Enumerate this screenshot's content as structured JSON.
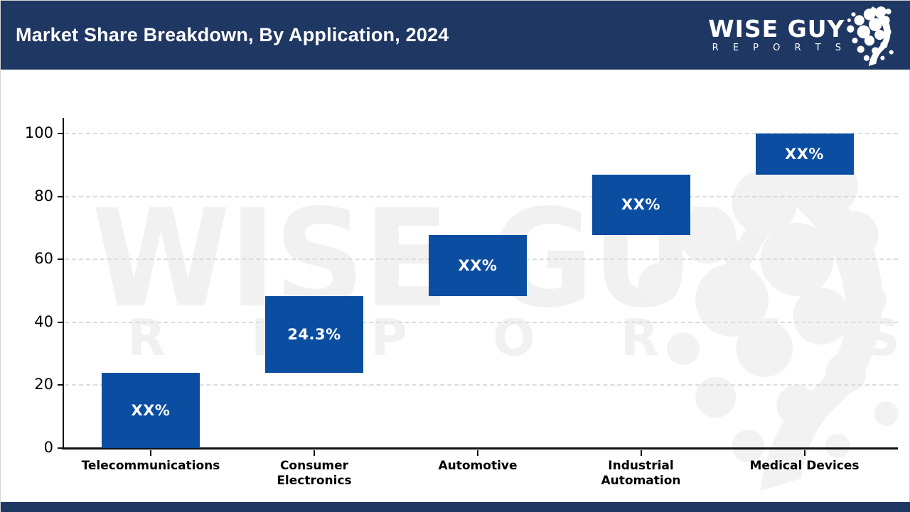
{
  "header": {
    "title": "Market Share Breakdown, By Application, 2024",
    "background_color": "#1F3763"
  },
  "logo": {
    "line1": "WISE GUY",
    "line2": "R E P O R T S"
  },
  "watermark": {
    "line1": "WISE GUY",
    "line2": "R E P O R T S"
  },
  "chart_data": {
    "type": "bar",
    "subtype": "waterfall",
    "title": "Market Share Breakdown, By Application, 2024",
    "categories": [
      "Telecommunications",
      "Consumer\nElectronics",
      "Automotive",
      "Industrial\nAutomation",
      "Medical Devices"
    ],
    "segments": [
      {
        "category": "Telecommunications",
        "start": 0,
        "end": 23.9,
        "label": "XX%"
      },
      {
        "category": "Consumer Electronics",
        "start": 23.9,
        "end": 48.2,
        "label": "24.3%"
      },
      {
        "category": "Automotive",
        "start": 48.2,
        "end": 67.7,
        "label": "XX%"
      },
      {
        "category": "Industrial Automation",
        "start": 67.7,
        "end": 87.0,
        "label": "XX%"
      },
      {
        "category": "Medical Devices",
        "start": 87.0,
        "end": 100.0,
        "label": "XX%"
      }
    ],
    "yticks": [
      0,
      20,
      40,
      60,
      80,
      100
    ],
    "ylim": [
      0,
      105
    ],
    "xlabel": "",
    "ylabel": "",
    "grid": "horizontal-dashed",
    "legend": "none",
    "bar_color": "#0B4DA1",
    "bar_label_color": "#FFFFFF"
  }
}
